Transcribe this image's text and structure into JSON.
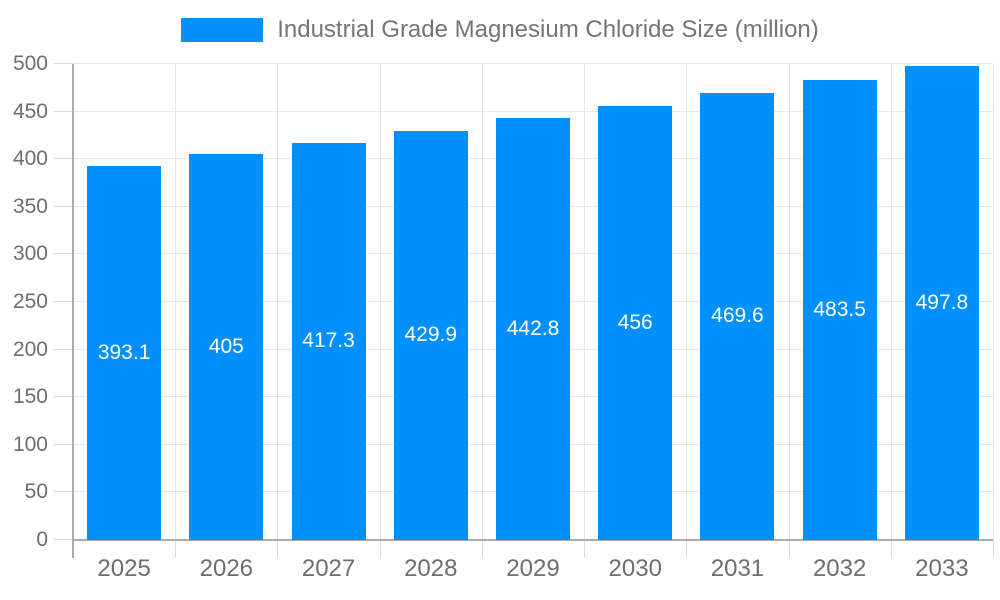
{
  "chart_data": {
    "type": "bar",
    "title": "Industrial Grade Magnesium Chloride Size (million)",
    "categories": [
      "2025",
      "2026",
      "2027",
      "2028",
      "2029",
      "2030",
      "2031",
      "2032",
      "2033"
    ],
    "series": [
      {
        "name": "Industrial Grade Magnesium Chloride Size (million)",
        "values": [
          393.1,
          405,
          417.3,
          429.9,
          442.8,
          456,
          469.6,
          483.5,
          497.8
        ]
      }
    ],
    "xlabel": "",
    "ylabel": "",
    "ylim": [
      0,
      500
    ],
    "ytick_step": 50,
    "yticks": [
      0,
      50,
      100,
      150,
      200,
      250,
      300,
      350,
      400,
      450,
      500
    ],
    "grid": "horizontal and vertical gridlines on",
    "legend_position": "top-center",
    "value_labels": "inside bars, centered, white",
    "colors": {
      "bar": "#0190FC",
      "bar_label": "#FFFFFF",
      "legend_text": "#757575",
      "axis_text": "#6E6E6E",
      "axis_line": "#ABABAB",
      "gridline": "#E7E7E7",
      "tick": "#DCDCDC",
      "background": "#FFFFFF"
    }
  }
}
